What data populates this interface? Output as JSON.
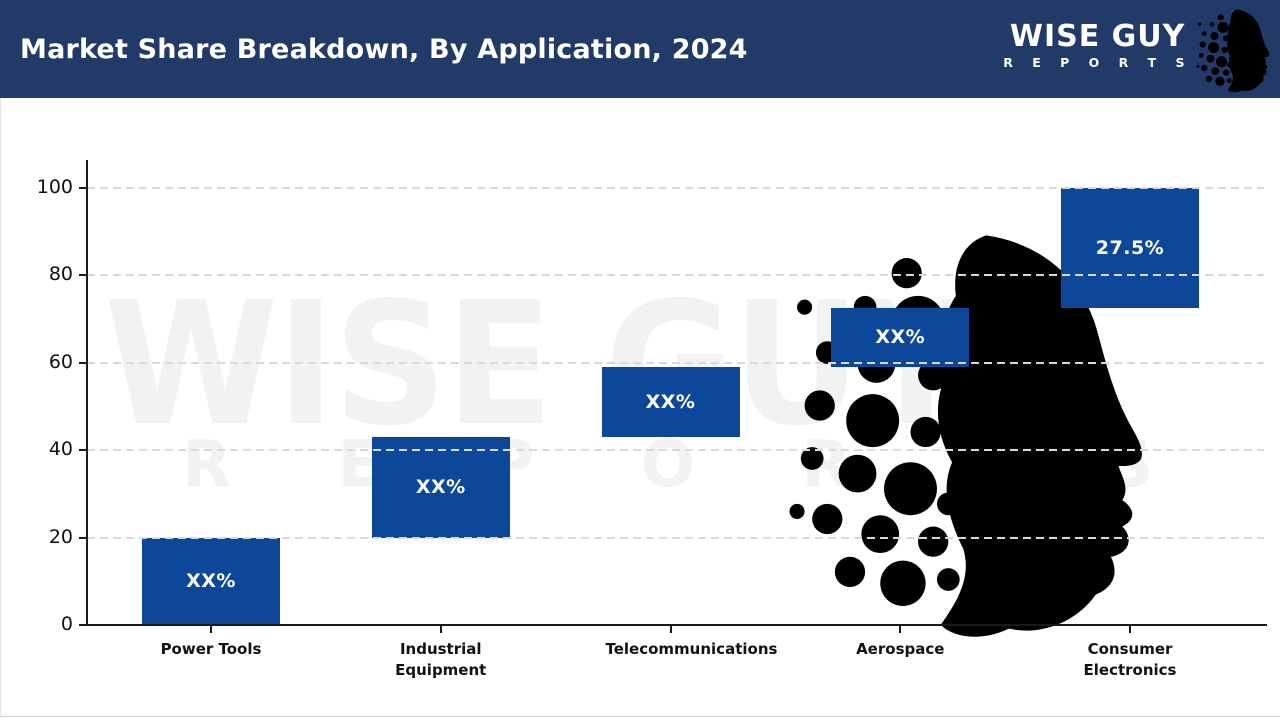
{
  "header": {
    "title": "Market Share Breakdown, By Application, 2024",
    "bg_color": "#213a67",
    "logo": {
      "line1": "WISE GUY",
      "line2": "R E P O R T S"
    }
  },
  "watermark": {
    "line1": "WISE GUY",
    "line2": "R E P O R T S"
  },
  "chart_data": {
    "type": "bar",
    "subtype": "floating-waterfall",
    "title": "Market Share Breakdown, By Application, 2024",
    "categories": [
      "Power Tools",
      "Industrial Equipment",
      "Telecommunications",
      "Aerospace",
      "Consumer Electronics"
    ],
    "values": [
      20,
      23,
      16,
      13.5,
      27.5
    ],
    "segment_start": [
      0,
      20,
      43,
      59,
      72.5
    ],
    "segment_end": [
      20,
      43,
      59,
      72.5,
      100
    ],
    "bar_labels": [
      "XX%",
      "XX%",
      "XX%",
      "XX%",
      "27.5%"
    ],
    "xlabel": "",
    "ylabel": "",
    "ylim": [
      0,
      100
    ],
    "yticks": [
      0,
      20,
      40,
      60,
      80,
      100
    ],
    "grid": "horizontal-dashed",
    "legend": "none",
    "bar_color": "#0d4799",
    "grid_color": "#d9d9d9"
  }
}
